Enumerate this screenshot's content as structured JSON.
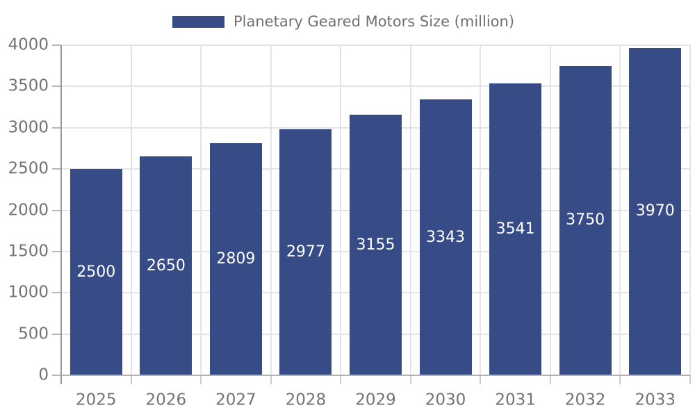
{
  "legend": {
    "label": "Planetary Geared Motors Size (million)"
  },
  "chart_data": {
    "type": "bar",
    "title": "Planetary Geared Motors Size (million)",
    "categories": [
      "2025",
      "2026",
      "2027",
      "2028",
      "2029",
      "2030",
      "2031",
      "2032",
      "2033"
    ],
    "values": [
      2500,
      2650,
      2809,
      2977,
      3155,
      3343,
      3541,
      3750,
      3970
    ],
    "xlabel": "",
    "ylabel": "",
    "ylim": [
      0,
      4000
    ],
    "yticks": [
      0,
      500,
      1000,
      1500,
      2000,
      2500,
      3000,
      3500,
      4000
    ],
    "grid": true,
    "legend_position": "top-center",
    "colors": {
      "bar": "#374B86",
      "value_label": "#ffffff",
      "axis_label": "#737373",
      "legend_label": "#707070",
      "gridline": "#e4e4e4",
      "axis_spine": "#9a9a9a",
      "axis_baseline": "#b3b3b3"
    }
  }
}
